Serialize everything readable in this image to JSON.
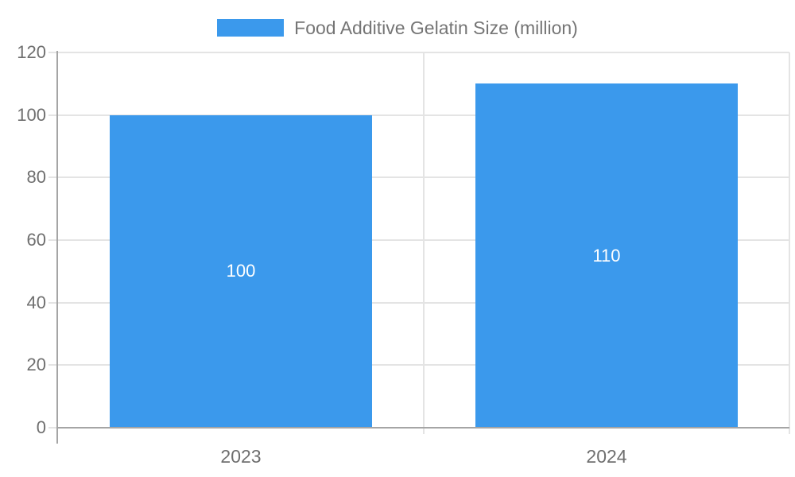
{
  "chart_data": {
    "type": "bar",
    "title": "Food Additive Gelatin Size (million)",
    "categories": [
      "2023",
      "2024"
    ],
    "series": [
      {
        "name": "Food Additive Gelatin Size (million)",
        "color": "#3B99EC",
        "values": [
          100,
          110
        ]
      }
    ],
    "xlabel": "",
    "ylabel": "",
    "ylim": [
      0,
      120
    ],
    "yticks": [
      0,
      20,
      40,
      60,
      80,
      100,
      120
    ],
    "grid": true,
    "legend_position": "top-center",
    "value_label_position": "inside-center"
  },
  "colors": {
    "bar": "#3B99EC",
    "axis_line": "#A5A5A5",
    "grid_line": "#E4E4E4",
    "tick_text": "#6F6F6F",
    "legend_text": "#757575",
    "bar_value_text": "#FFFFFF",
    "background": "#FFFFFF"
  }
}
